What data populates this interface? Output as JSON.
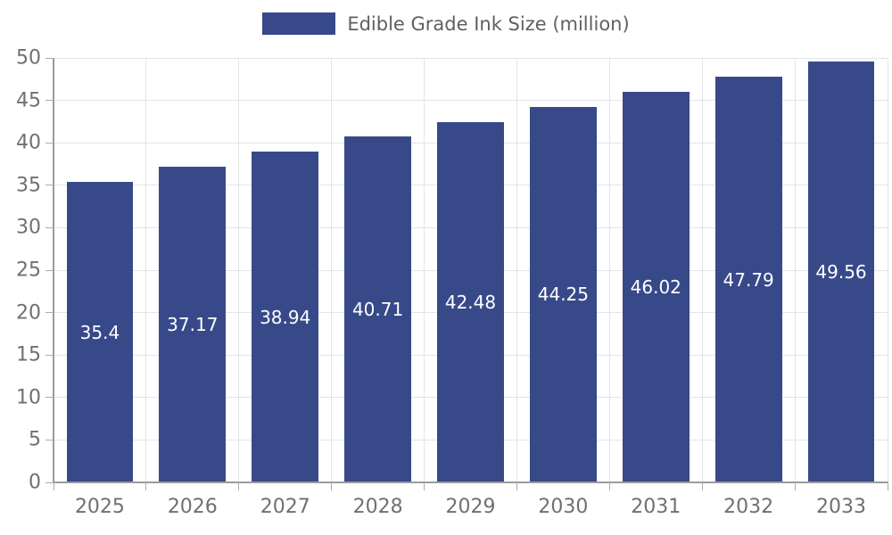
{
  "legend": {
    "label": "Edible Grade Ink Size (million)"
  },
  "colors": {
    "bar": "#38498A",
    "grid_line": "#E2E4E9",
    "axis_line": "#9B9B9B",
    "tick_mark": "#ABABAB",
    "axis_label": "#707070",
    "legend_text": "#606060",
    "value_label": "#FFFFFF"
  },
  "chart_data": {
    "type": "bar",
    "title": "Edible Grade Ink Size (million)",
    "categories": [
      "2025",
      "2026",
      "2027",
      "2028",
      "2029",
      "2030",
      "2031",
      "2032",
      "2033"
    ],
    "values": [
      35.4,
      37.17,
      38.94,
      40.71,
      42.48,
      44.25,
      46.02,
      47.79,
      49.56
    ],
    "xlabel": "",
    "ylabel": "",
    "ylim": [
      0,
      50
    ],
    "ytick_interval": 5,
    "ytick_labels": [
      "0",
      "5",
      "10",
      "15",
      "20",
      "25",
      "30",
      "35",
      "40",
      "45",
      "50"
    ],
    "grid": true,
    "value_labels_shown": true,
    "value_label_position": "center-of-bar",
    "legend_position": "top-center",
    "bar_width_fraction": 0.72
  }
}
